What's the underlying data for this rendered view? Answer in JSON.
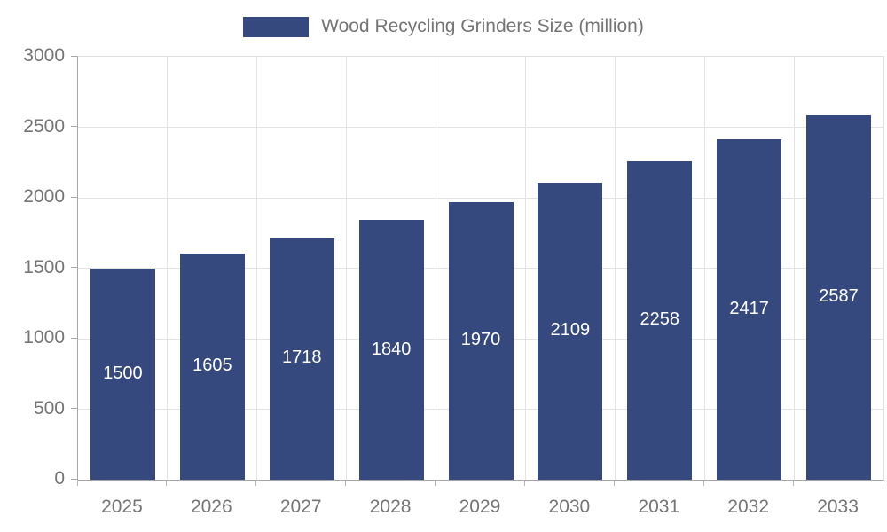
{
  "legend": {
    "label": "Wood Recycling Grinders Size (million)"
  },
  "colors": {
    "bar": "#35497E",
    "bar_label": "#ffffff",
    "gridline": "#e3e3e3",
    "axis_line": "#a6a6a6",
    "tick_text": "#757575"
  },
  "chart_data": {
    "type": "bar",
    "title": "Wood Recycling Grinders Size (million)",
    "categories": [
      "2025",
      "2026",
      "2027",
      "2028",
      "2029",
      "2030",
      "2031",
      "2032",
      "2033"
    ],
    "values": [
      1500,
      1605,
      1718,
      1840,
      1970,
      2109,
      2258,
      2417,
      2587
    ],
    "series_name": "Wood Recycling Grinders Size (million)",
    "xlabel": "",
    "ylabel": "",
    "ylim": [
      0,
      3000
    ],
    "yticks": [
      0,
      500,
      1000,
      1500,
      2000,
      2500,
      3000
    ],
    "grid": true,
    "legend_position": "top",
    "bar_labels_visible": true
  }
}
